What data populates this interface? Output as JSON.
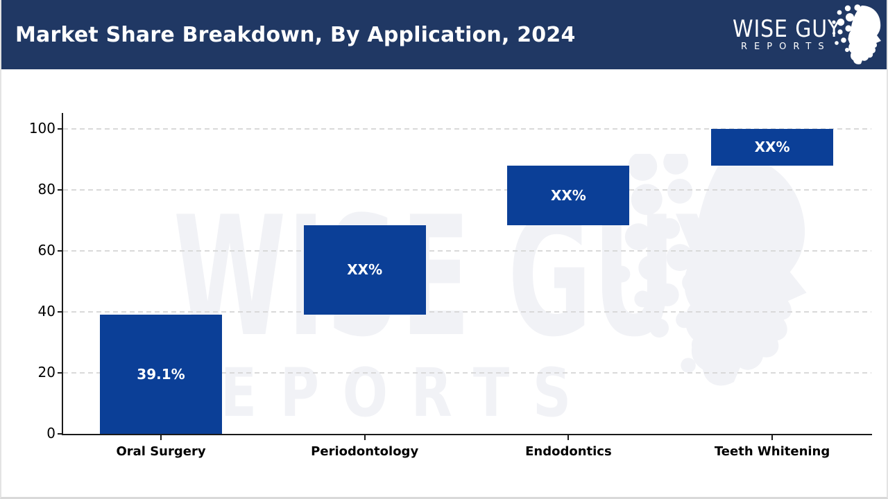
{
  "header": {
    "title": "Market Share Breakdown, By Application, 2024",
    "bg_color": "#203864",
    "logo": {
      "name": "WISE GUY",
      "sub": "REPORTS"
    }
  },
  "watermark": {
    "line1": "WISE GUY",
    "line2": "REPORTS"
  },
  "chart_data": {
    "type": "bar",
    "subtype": "waterfall",
    "title": "Market Share Breakdown, By Application, 2024",
    "xlabel": "",
    "ylabel": "",
    "ylim": [
      0,
      105
    ],
    "yticks": [
      0,
      20,
      40,
      60,
      80,
      100
    ],
    "grid": "horizontal-dashed",
    "legend": "none",
    "bar_color": "#0b3f97",
    "bar_label_color": "#ffffff",
    "categories": [
      "Oral Surgery",
      "Periodontology",
      "Endodontics",
      "Teeth Whitening"
    ],
    "segments": [
      {
        "category": "Oral Surgery",
        "start": 0,
        "end": 39.1,
        "label": "39.1%"
      },
      {
        "category": "Periodontology",
        "start": 39.1,
        "end": 68.4,
        "label": "XX%"
      },
      {
        "category": "Endodontics",
        "start": 68.4,
        "end": 88.0,
        "label": "XX%"
      },
      {
        "category": "Teeth Whitening",
        "start": 88.0,
        "end": 100.0,
        "label": "XX%"
      }
    ]
  }
}
